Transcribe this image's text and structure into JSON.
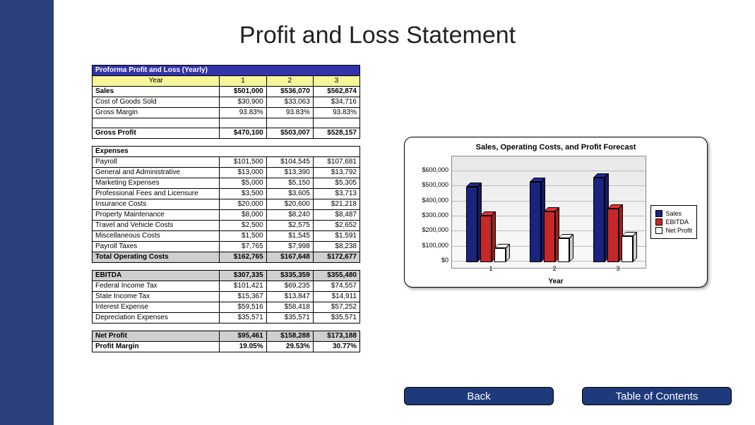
{
  "page_title": "Profit and Loss Statement",
  "accent_sidebar": "#2c3f7a",
  "table": {
    "header": "Proforma Profit and Loss (Yearly)",
    "year_label": "Year",
    "years": [
      "1",
      "2",
      "3"
    ],
    "sales": {
      "label": "Sales",
      "v": [
        "$501,000",
        "$536,070",
        "$562,874"
      ]
    },
    "cogs": {
      "label": "Cost of Goods Sold",
      "v": [
        "$30,900",
        "$33,063",
        "$34,716"
      ]
    },
    "gm": {
      "label": "Gross Margin",
      "v": [
        "93.83%",
        "93.83%",
        "93.83%"
      ]
    },
    "gp": {
      "label": "Gross Profit",
      "v": [
        "$470,100",
        "$503,007",
        "$528,157"
      ]
    },
    "exp_header": "Expenses",
    "expenses": [
      {
        "label": "Payroll",
        "v": [
          "$101,500",
          "$104,545",
          "$107,681"
        ]
      },
      {
        "label": "General and Administrative",
        "v": [
          "$13,000",
          "$13,390",
          "$13,792"
        ]
      },
      {
        "label": "Marketing Expenses",
        "v": [
          "$5,000",
          "$5,150",
          "$5,305"
        ]
      },
      {
        "label": "Professional Fees and Licensure",
        "v": [
          "$3,500",
          "$3,605",
          "$3,713"
        ]
      },
      {
        "label": "Insurance Costs",
        "v": [
          "$20,000",
          "$20,600",
          "$21,218"
        ]
      },
      {
        "label": "Property Maintenance",
        "v": [
          "$8,000",
          "$8,240",
          "$8,487"
        ]
      },
      {
        "label": "Travel and Vehicle Costs",
        "v": [
          "$2,500",
          "$2,575",
          "$2,652"
        ]
      },
      {
        "label": "Miscellaneous Costs",
        "v": [
          "$1,500",
          "$1,545",
          "$1,591"
        ]
      },
      {
        "label": "Payroll Taxes",
        "v": [
          "$7,765",
          "$7,998",
          "$8,238"
        ]
      }
    ],
    "total_op": {
      "label": "Total Operating Costs",
      "v": [
        "$162,765",
        "$167,648",
        "$172,677"
      ]
    },
    "ebitda": {
      "label": "EBITDA",
      "v": [
        "$307,335",
        "$335,359",
        "$355,480"
      ]
    },
    "below": [
      {
        "label": "Federal Income Tax",
        "v": [
          "$101,421",
          "$69,235",
          "$74,557"
        ]
      },
      {
        "label": "State Income Tax",
        "v": [
          "$15,367",
          "$13,847",
          "$14,911"
        ]
      },
      {
        "label": "Interest Expense",
        "v": [
          "$59,516",
          "$58,418",
          "$57,252"
        ]
      },
      {
        "label": "Depreciation Expenses",
        "v": [
          "$35,571",
          "$35,571",
          "$35,571"
        ]
      }
    ],
    "net": {
      "label": "Net Profit",
      "v": [
        "$95,461",
        "$158,288",
        "$173,188"
      ]
    },
    "margin": {
      "label": "Profit Margin",
      "v": [
        "19.05%",
        "29.53%",
        "30.77%"
      ]
    }
  },
  "chart": {
    "title": "Sales, Operating Costs, and Profit Forecast",
    "x_label": "Year",
    "categories": [
      "1",
      "2",
      "3"
    ],
    "ylim": [
      0,
      600000
    ],
    "ytick_step": 100000,
    "yticks": [
      "$0",
      "$100,000",
      "$200,000",
      "$300,000",
      "$400,000",
      "$500,000",
      "$600,000"
    ],
    "series": [
      {
        "name": "Sales",
        "color": "#1a237e",
        "values": [
          501000,
          536070,
          562874
        ]
      },
      {
        "name": "EBITDA",
        "color": "#c62828",
        "values": [
          307335,
          335359,
          355480
        ]
      },
      {
        "name": "Net Profit",
        "color": "#ffffff",
        "values": [
          95461,
          158288,
          173188
        ]
      }
    ]
  },
  "nav": {
    "back": "Back",
    "toc": "Table of Contents"
  }
}
